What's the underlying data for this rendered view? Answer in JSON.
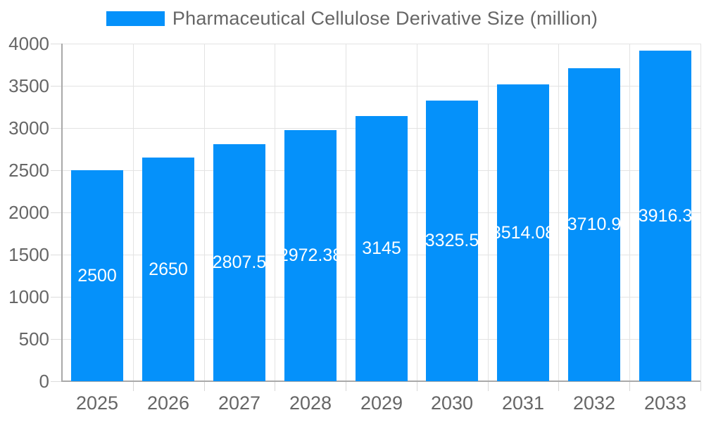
{
  "legend": {
    "label": "Pharmaceutical Cellulose Derivative Size (million)"
  },
  "chart_data": {
    "type": "bar",
    "title": "Pharmaceutical Cellulose Derivative Size (million)",
    "series_name": "Pharmaceutical Cellulose Derivative Size (million)",
    "categories": [
      "2025",
      "2026",
      "2027",
      "2028",
      "2029",
      "2030",
      "2031",
      "2032",
      "2033"
    ],
    "values": [
      2500,
      2650,
      2807.5,
      2972.38,
      3145,
      3325.5,
      3514.08,
      3710.9,
      3916.3
    ],
    "xlabel": "",
    "ylabel": "",
    "ylim": [
      0,
      4000
    ],
    "ytick_step": 500,
    "yticks": [
      0,
      500,
      1000,
      1500,
      2000,
      2500,
      3000,
      3500,
      4000
    ],
    "grid": true,
    "legend_position": "top",
    "value_labels_shown": true,
    "colors": {
      "bar": "#0591fa",
      "value_label": "#ffffff",
      "axis_text": "#666666",
      "grid_line": "#e3e3e3",
      "axis_line": "#a9a9a9"
    }
  }
}
